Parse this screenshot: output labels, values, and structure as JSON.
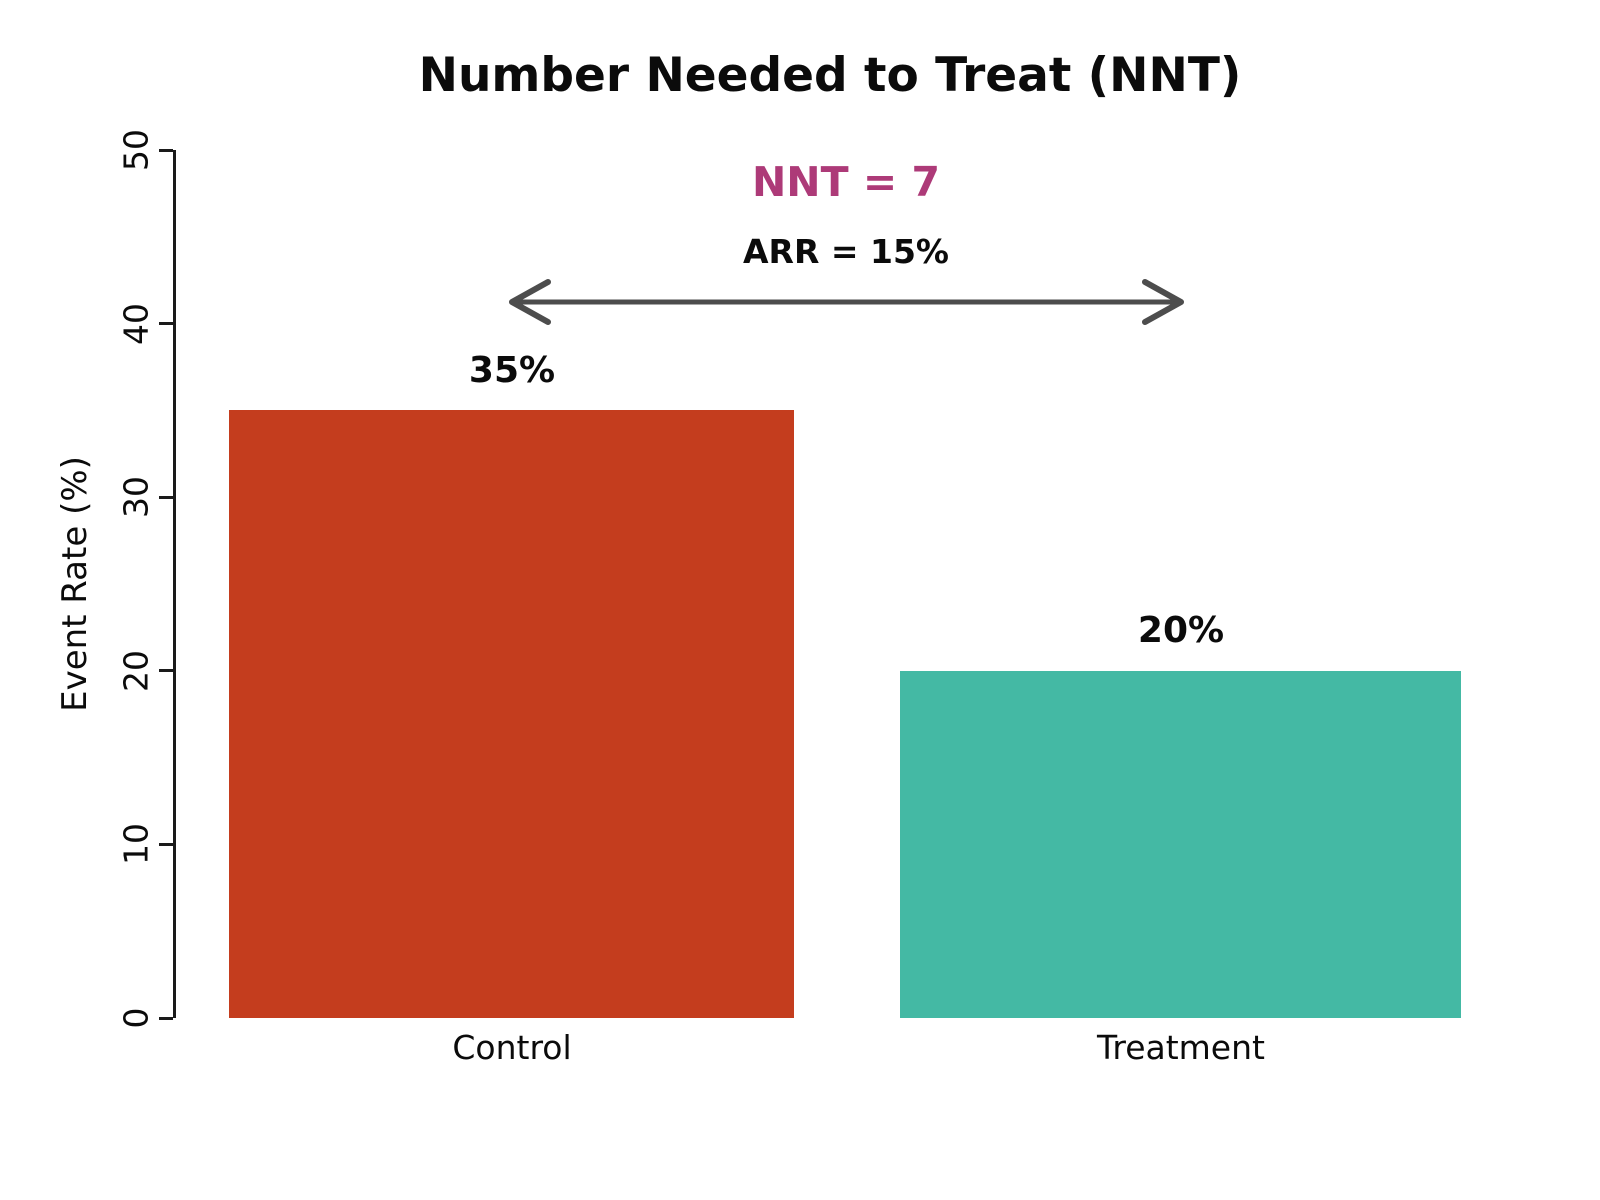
{
  "chart_data": {
    "type": "bar",
    "title": "Number Needed to Treat (NNT)",
    "xlabel": "",
    "ylabel": "Event Rate (%)",
    "categories": [
      "Control",
      "Treatment"
    ],
    "values": [
      35,
      20
    ],
    "bar_value_labels": [
      "35%",
      "20%"
    ],
    "bar_colors": [
      "#C43D1E",
      "#44B9A4"
    ],
    "ylim": [
      0,
      50
    ],
    "yticks": [
      0,
      10,
      20,
      30,
      40,
      50
    ],
    "grid": false,
    "legend": "none",
    "annotations": {
      "nnt": {
        "text": "NNT = 7",
        "color": "#AD3A78"
      },
      "arr": {
        "text": "ARR = 15%",
        "color": "#0b0b0b"
      },
      "arrow": {
        "type": "double-headed-horizontal",
        "color": "#4D4D4D",
        "from_category": "Control",
        "to_category": "Treatment",
        "y_value": 41
      }
    }
  }
}
